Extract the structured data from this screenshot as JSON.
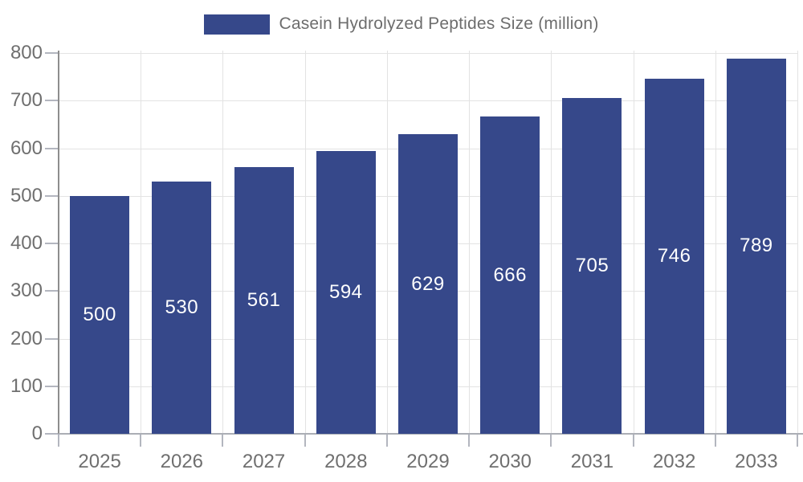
{
  "legend": {
    "label": "Casein Hydrolyzed Peptides Size (million)"
  },
  "chart_data": {
    "type": "bar",
    "title": "Casein Hydrolyzed Peptides Size (million)",
    "categories": [
      "2025",
      "2026",
      "2027",
      "2028",
      "2029",
      "2030",
      "2031",
      "2032",
      "2033"
    ],
    "series": [
      {
        "name": "Casein Hydrolyzed Peptides Size (million)",
        "values": [
          500,
          530,
          561,
          594,
          629,
          666,
          705,
          746,
          789
        ]
      }
    ],
    "xlabel": "",
    "ylabel": "",
    "ylim": [
      0,
      800
    ],
    "ytick_step": 100,
    "grid": "both",
    "legend_position": "top-center",
    "bar_color": "#36488a",
    "value_label_color": "#ffffff",
    "axis_text_color": "#6f6f6f"
  }
}
